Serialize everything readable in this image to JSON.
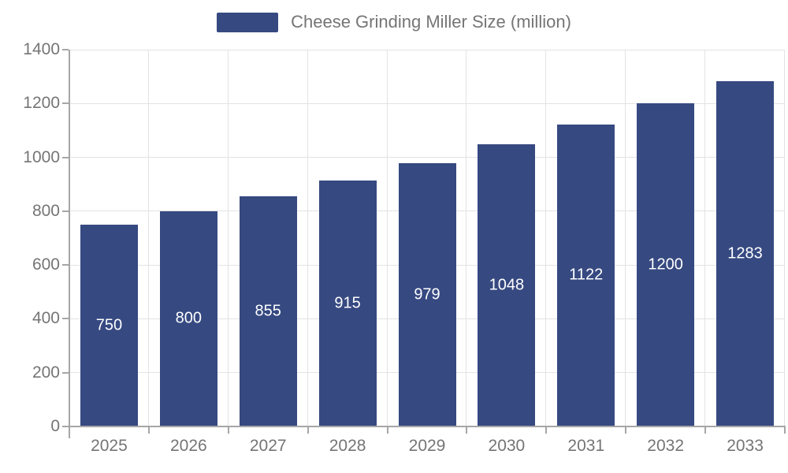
{
  "chart_data": {
    "type": "bar",
    "title": "Cheese Grinding Miller Size (million)",
    "legend": [
      "Cheese Grinding Miller Size (million)"
    ],
    "legend_position": "top-center",
    "categories": [
      "2025",
      "2026",
      "2027",
      "2028",
      "2029",
      "2030",
      "2031",
      "2032",
      "2033"
    ],
    "values": [
      750,
      800,
      855,
      915,
      979,
      1048,
      1122,
      1200,
      1283
    ],
    "xlabel": "",
    "ylabel": "",
    "ylim": [
      0,
      1400
    ],
    "yticks": [
      0,
      200,
      400,
      600,
      800,
      1000,
      1200,
      1400
    ],
    "grid": true,
    "value_labels": "inside-middle",
    "colors": {
      "bar": "#364981",
      "grid": "#e3e3e3",
      "axis": "#a6a6a6",
      "text": "#757575",
      "value_label": "#ffffff",
      "background": "#ffffff"
    }
  }
}
